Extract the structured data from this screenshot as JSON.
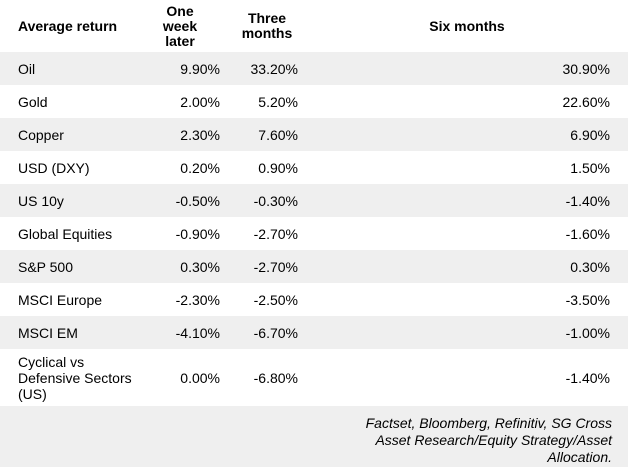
{
  "table": {
    "headers": [
      "Average return",
      "One\nweek\nlater",
      "Three\nmonths",
      "Six months"
    ],
    "rows": [
      {
        "label": "Oil",
        "values": [
          "9.90%",
          "33.20%",
          "30.90%"
        ]
      },
      {
        "label": "Gold",
        "values": [
          "2.00%",
          "5.20%",
          "22.60%"
        ]
      },
      {
        "label": "Copper",
        "values": [
          "2.30%",
          "7.60%",
          "6.90%"
        ]
      },
      {
        "label": "USD (DXY)",
        "values": [
          "0.20%",
          "0.90%",
          "1.50%"
        ]
      },
      {
        "label": "US 10y",
        "values": [
          "-0.50%",
          "-0.30%",
          "-1.40%"
        ]
      },
      {
        "label": "Global Equities",
        "values": [
          "-0.90%",
          "-2.70%",
          "-1.60%"
        ]
      },
      {
        "label": "S&P 500",
        "values": [
          "0.30%",
          "-2.70%",
          "0.30%"
        ]
      },
      {
        "label": "MSCI Europe",
        "values": [
          "-2.30%",
          "-2.50%",
          "-3.50%"
        ]
      },
      {
        "label": "MSCI EM",
        "values": [
          "-4.10%",
          "-6.70%",
          "-1.00%"
        ]
      },
      {
        "label": "Cyclical vs\nDefensive Sectors\n(US)",
        "values": [
          "0.00%",
          "-6.80%",
          "-1.40%"
        ]
      }
    ],
    "source": "Factset, Bloomberg, Refinitiv, SG Cross\nAsset Research/Equity Strategy/Asset\nAllocation."
  },
  "colors": {
    "stripe_background": "#efefef",
    "text": "#000000",
    "background": "#ffffff"
  },
  "chart_data": {
    "type": "table",
    "title": "Average return",
    "unit": "%",
    "columns": [
      "Average return",
      "One week later",
      "Three months",
      "Six months"
    ],
    "row_labels": [
      "Oil",
      "Gold",
      "Copper",
      "USD (DXY)",
      "US 10y",
      "Global Equities",
      "S&P 500",
      "MSCI Europe",
      "MSCI EM",
      "Cyclical vs Defensive Sectors (US)"
    ],
    "series": [
      {
        "name": "One week later",
        "values": [
          9.9,
          2.0,
          2.3,
          0.2,
          -0.5,
          -0.9,
          0.3,
          -2.3,
          -4.1,
          0.0
        ]
      },
      {
        "name": "Three months",
        "values": [
          33.2,
          5.2,
          7.6,
          0.9,
          -0.3,
          -2.7,
          -2.7,
          -2.5,
          -6.7,
          -6.8
        ]
      },
      {
        "name": "Six months",
        "values": [
          30.9,
          22.6,
          6.9,
          1.5,
          -1.4,
          -1.6,
          0.3,
          -3.5,
          -1.0,
          -1.4
        ]
      }
    ],
    "annotations": [
      "Factset, Bloomberg, Refinitiv, SG Cross Asset Research/Equity Strategy/Asset Allocation."
    ],
    "layout": {
      "striped_rows": true,
      "grid": false,
      "value_alignment": "right"
    }
  }
}
